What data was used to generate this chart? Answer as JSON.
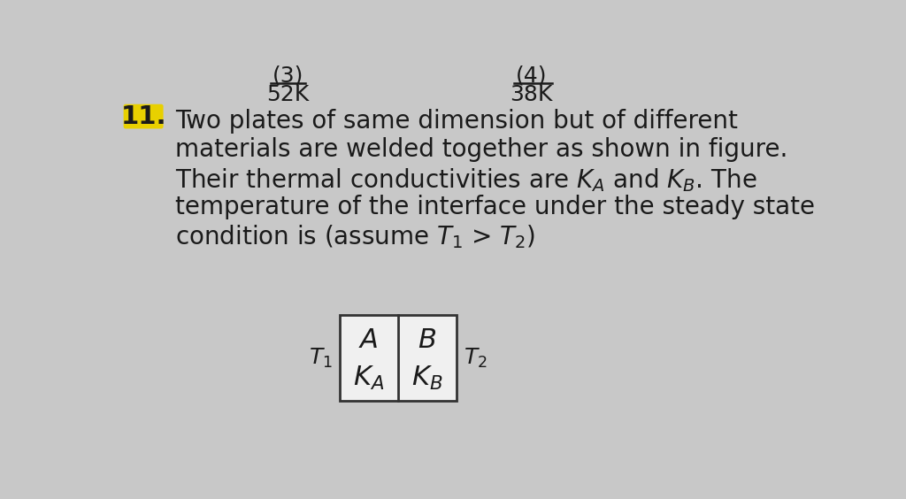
{
  "background_color": "#c8c8c8",
  "top_left_num": "(3)",
  "top_left_den": "52K",
  "top_right_num": "(4)",
  "top_right_den": "38K",
  "question_number": "11.",
  "question_number_bg": "#e8d000",
  "para_line1": "Two plates of same dimension but of different",
  "para_line2": "materials are welded together as shown in figure.",
  "para_line3": "Their thermal conductivities are $K_A$ and $K_B$. The",
  "para_line4": "temperature of the interface under the steady state",
  "para_line5": "condition is (assume $T_1$ > $T_2$)",
  "box_bg": "#f0f0f0",
  "box_line_color": "#333333",
  "text_color": "#1a1a1a",
  "font_size_para": 20,
  "font_size_top": 18,
  "font_size_box": 22,
  "font_size_sub": 18,
  "font_size_qnum": 21
}
